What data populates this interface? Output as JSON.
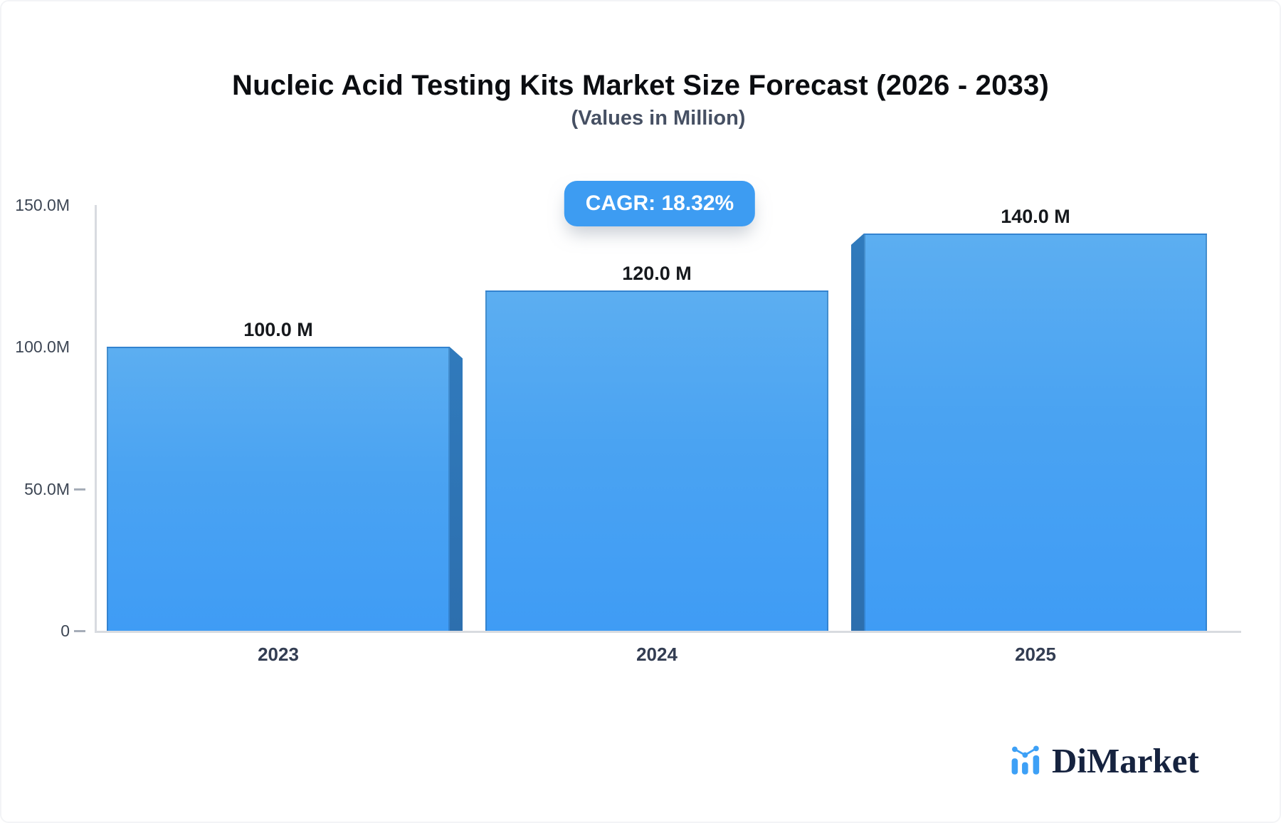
{
  "title": "Nucleic Acid Testing Kits Market Size Forecast (2026 - 2033)",
  "subtitle": "(Values in Million)",
  "cagr_label": "CAGR: 18.32%",
  "brand": {
    "name": "DiMarket"
  },
  "colors": {
    "bar_top": "#5caef1",
    "bar_bottom": "#3f9cf5",
    "bar_side": "#2e76b8",
    "badge_bg": "#3d9cf2",
    "axis": "#d8dbe0",
    "title_text": "#0b0d11",
    "subtitle_text": "#465063",
    "tick_text": "#3d4654",
    "category_text": "#333d52",
    "logo_text": "#16233f",
    "logo_icon": "#3da0f6"
  },
  "chart_data": {
    "type": "bar",
    "title": "Nucleic Acid Testing Kits Market Size Forecast (2026 - 2033)",
    "subtitle": "(Values in Million)",
    "unit": "Million",
    "cagr_percent": 18.32,
    "categories": [
      "2023",
      "2024",
      "2025"
    ],
    "values": [
      100.0,
      120.0,
      140.0
    ],
    "value_labels": [
      "100.0 M",
      "120.0 M",
      "140.0 M"
    ],
    "ylim": [
      0,
      150
    ],
    "yticks": [
      {
        "label": "150.0M",
        "value": 150,
        "dash": false
      },
      {
        "label": "100.0M",
        "value": 100,
        "dash": false
      },
      {
        "label": "50.0M",
        "value": 50,
        "dash": true
      },
      {
        "label": "0",
        "value": 0,
        "dash": true
      }
    ],
    "grid": false,
    "legend": false
  }
}
